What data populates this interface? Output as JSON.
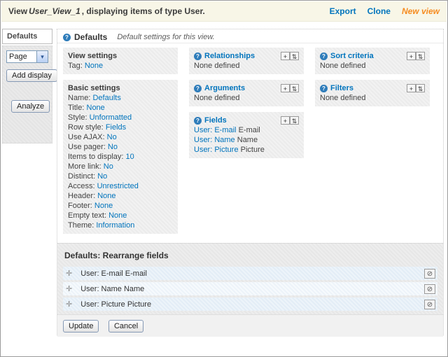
{
  "icons": {
    "help": "?",
    "add": "+",
    "rearrange": "⇅",
    "drag": "✛",
    "remove": "⊘",
    "select_arrow": "▾"
  },
  "colors": {
    "link_blue": "#0074bd",
    "new_view_orange": "#f68b1f",
    "header_cream": "#f8f6e7"
  },
  "header": {
    "prefix": "View",
    "view_name": "User_View_1",
    "suffix": ", displaying items of type User.",
    "links": {
      "export": "Export",
      "clone": "Clone",
      "new_view": "New view"
    }
  },
  "sidebar": {
    "tab_label": "Defaults",
    "display_select_value": "Page",
    "add_display_label": "Add display",
    "analyze_label": "Analyze"
  },
  "main": {
    "title": "Defaults",
    "subtitle": "Default settings for this view.",
    "view_settings": {
      "title": "View settings",
      "items": [
        {
          "label": "Tag:",
          "value": "None"
        }
      ]
    },
    "basic_settings": {
      "title": "Basic settings",
      "items": [
        {
          "label": "Name:",
          "value": "Defaults"
        },
        {
          "label": "Title:",
          "value": "None"
        },
        {
          "label": "Style:",
          "value": "Unformatted"
        },
        {
          "label": "Row style:",
          "value": "Fields"
        },
        {
          "label": "Use AJAX:",
          "value": "No"
        },
        {
          "label": "Use pager:",
          "value": "No"
        },
        {
          "label": "Items to display:",
          "value": "10"
        },
        {
          "label": "More link:",
          "value": "No"
        },
        {
          "label": "Distinct:",
          "value": "No"
        },
        {
          "label": "Access:",
          "value": "Unrestricted"
        },
        {
          "label": "Header:",
          "value": "None"
        },
        {
          "label": "Footer:",
          "value": "None"
        },
        {
          "label": "Empty text:",
          "value": "None"
        },
        {
          "label": "Theme:",
          "value": "Information"
        }
      ]
    },
    "relationships": {
      "title": "Relationships",
      "empty": "None defined"
    },
    "arguments": {
      "title": "Arguments",
      "empty": "None defined"
    },
    "fields": {
      "title": "Fields",
      "items": [
        {
          "link": "User: E-mail",
          "suffix": "E-mail"
        },
        {
          "link": "User: Name",
          "suffix": "Name"
        },
        {
          "link": "User: Picture",
          "suffix": "Picture"
        }
      ]
    },
    "sort": {
      "title": "Sort criteria",
      "empty": "None defined"
    },
    "filters": {
      "title": "Filters",
      "empty": "None defined"
    }
  },
  "rearrange": {
    "title": "Defaults: Rearrange fields",
    "rows": [
      {
        "label": "User: E-mail E-mail"
      },
      {
        "label": "User: Name Name"
      },
      {
        "label": "User: Picture Picture"
      }
    ],
    "update_label": "Update",
    "cancel_label": "Cancel"
  }
}
